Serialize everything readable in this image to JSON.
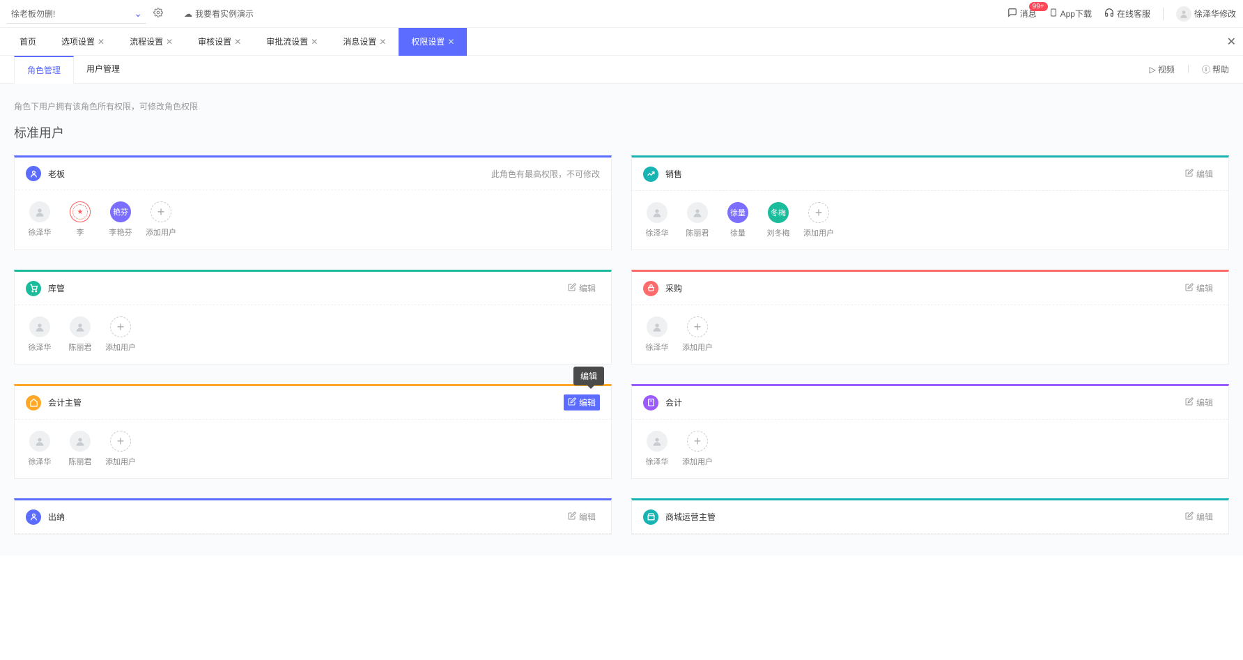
{
  "topbar": {
    "company": "徐老板勿删!",
    "demo_link": "我要看实例演示",
    "messages": {
      "label": "消息",
      "badge": "99+"
    },
    "app_download": "App下载",
    "online_service": "在线客服",
    "username": "徐泽华修改"
  },
  "tabs": {
    "home": "首页",
    "items": [
      {
        "label": "选项设置"
      },
      {
        "label": "流程设置"
      },
      {
        "label": "审核设置"
      },
      {
        "label": "审批流设置"
      },
      {
        "label": "消息设置"
      },
      {
        "label": "权限设置",
        "active": true
      }
    ]
  },
  "subtabs": {
    "role_mgmt": "角色管理",
    "user_mgmt": "用户管理",
    "video": "视频",
    "help": "帮助"
  },
  "page": {
    "hint": "角色下用户拥有该角色所有权限，可修改角色权限",
    "section_title": "标准用户",
    "add_user_label": "添加用户",
    "edit_label": "编辑",
    "tooltip_edit": "编辑"
  },
  "colors": {
    "blue": "#5b6cff",
    "teal": "#18b3b3",
    "green": "#1abc9c",
    "red": "#ff6b6b",
    "orange": "#ffa726",
    "purple": "#9b59ff"
  },
  "roles": [
    {
      "name": "老板",
      "border_color": "#5b6cff",
      "icon_bg": "#5b6cff",
      "icon": "person",
      "readonly_text": "此角色有最高权限，不可修改",
      "users": [
        {
          "label": "徐泽华",
          "type": "placeholder"
        },
        {
          "label": "李",
          "type": "stamp"
        },
        {
          "label": "李艳芬",
          "type": "colored",
          "bg": "#7c6fff",
          "initials": "艳芬"
        }
      ]
    },
    {
      "name": "销售",
      "border_color": "#18b3b3",
      "icon_bg": "#18b3b3",
      "icon": "sales",
      "editable": true,
      "users": [
        {
          "label": "徐泽华",
          "type": "placeholder"
        },
        {
          "label": "陈丽君",
          "type": "placeholder"
        },
        {
          "label": "徐量",
          "type": "colored",
          "bg": "#7c6fff",
          "initials": "徐量"
        },
        {
          "label": "刘冬梅",
          "type": "colored",
          "bg": "#1abc9c",
          "initials": "冬梅"
        }
      ]
    },
    {
      "name": "库管",
      "border_color": "#1abc9c",
      "icon_bg": "#1abc9c",
      "icon": "cart",
      "editable": true,
      "users": [
        {
          "label": "徐泽华",
          "type": "placeholder"
        },
        {
          "label": "陈丽君",
          "type": "placeholder"
        }
      ]
    },
    {
      "name": "采购",
      "border_color": "#ff6b6b",
      "icon_bg": "#ff6b6b",
      "icon": "basket",
      "editable": true,
      "users": [
        {
          "label": "徐泽华",
          "type": "placeholder"
        }
      ]
    },
    {
      "name": "会计主管",
      "border_color": "#ffa726",
      "icon_bg": "#ffa726",
      "icon": "house",
      "editable": true,
      "edit_highlight": true,
      "show_tooltip": true,
      "users": [
        {
          "label": "徐泽华",
          "type": "placeholder"
        },
        {
          "label": "陈丽君",
          "type": "placeholder"
        }
      ]
    },
    {
      "name": "会计",
      "border_color": "#9b59ff",
      "icon_bg": "#9b59ff",
      "icon": "calc",
      "editable": true,
      "users": [
        {
          "label": "徐泽华",
          "type": "placeholder"
        }
      ]
    },
    {
      "name": "出纳",
      "border_color": "#5b6cff",
      "icon_bg": "#5b6cff",
      "icon": "person",
      "editable": true,
      "body_hidden": true,
      "users": []
    },
    {
      "name": "商城运营主管",
      "border_color": "#18b3b3",
      "icon_bg": "#18b3b3",
      "icon": "shop",
      "editable": true,
      "body_hidden": true,
      "users": []
    }
  ]
}
